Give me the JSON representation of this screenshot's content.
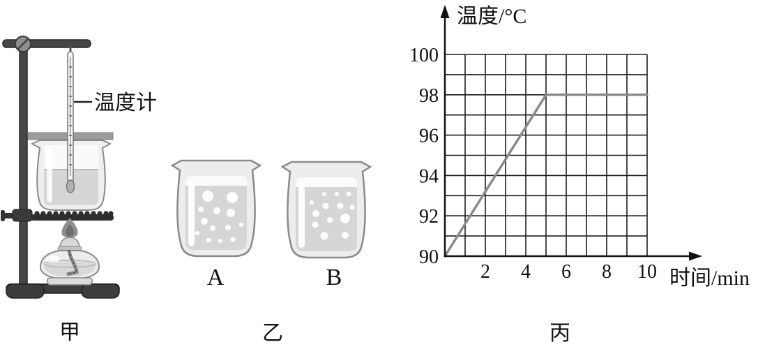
{
  "panels": {
    "jia": {
      "caption": "甲",
      "thermometer_label": "温度计"
    },
    "yi": {
      "caption": "乙",
      "beaker_a": {
        "label": "A",
        "bubbles": [
          [
            298,
            281,
            8
          ],
          [
            333,
            283,
            8
          ],
          [
            288,
            300,
            4
          ],
          [
            311,
            302,
            5
          ],
          [
            331,
            305,
            6
          ],
          [
            293,
            317,
            5
          ],
          [
            305,
            327,
            4
          ],
          [
            327,
            326,
            4
          ],
          [
            346,
            322,
            3
          ],
          [
            283,
            334,
            3
          ],
          [
            299,
            344,
            3.5
          ],
          [
            316,
            345,
            3
          ],
          [
            334,
            343,
            3.5
          ]
        ]
      },
      "beaker_b": {
        "label": "B",
        "bubbles": [
          [
            465,
            278,
            3
          ],
          [
            483,
            278,
            3
          ],
          [
            500,
            278,
            3.5
          ],
          [
            447,
            290,
            3
          ],
          [
            467,
            295,
            4.5
          ],
          [
            488,
            295,
            4.5
          ],
          [
            505,
            297,
            3.5
          ],
          [
            453,
            306,
            5
          ],
          [
            473,
            315,
            4
          ],
          [
            495,
            313,
            7
          ],
          [
            452,
            322,
            4.5
          ],
          [
            465,
            338,
            5.5
          ],
          [
            495,
            337,
            5
          ]
        ]
      }
    },
    "bing": {
      "caption": "丙"
    }
  },
  "chart_data": {
    "type": "line",
    "title": "",
    "xlabel": "时间/min",
    "ylabel": "温度/°C",
    "xlim": [
      0,
      10
    ],
    "ylim": [
      90,
      100
    ],
    "xticks": [
      2,
      4,
      6,
      8,
      10
    ],
    "yticks": [
      100,
      98,
      96,
      94,
      92,
      90
    ],
    "grid": true,
    "grid_step_x": 1,
    "grid_step_y": 1,
    "legend": false,
    "series": [
      {
        "points": [
          [
            0,
            90
          ],
          [
            5,
            98
          ],
          [
            10,
            98
          ]
        ],
        "color": "#8a8a8a"
      }
    ]
  },
  "colors": {
    "axis": "#111111",
    "grid": "#1c1c1c",
    "curve": "#8a8a8a",
    "stand_dark": "#3d3d3d",
    "metal_gray": "#9c9c9c",
    "glass_fill": "#ededed",
    "water_fill": "#d6d6d6"
  }
}
